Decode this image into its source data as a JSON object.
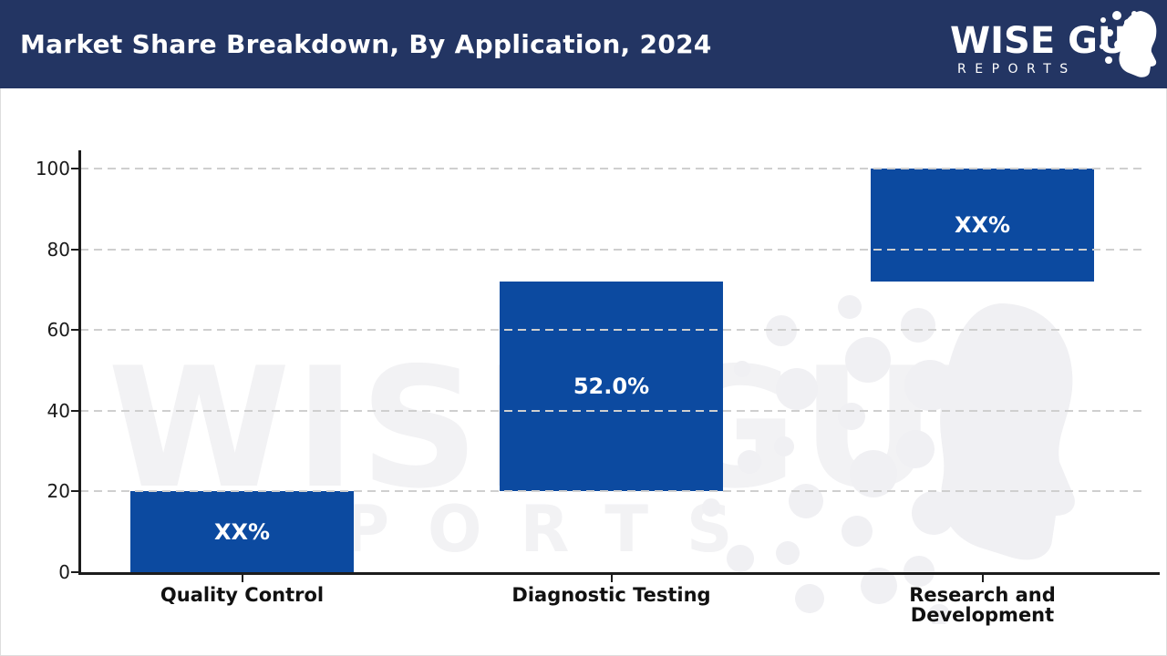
{
  "header": {
    "title": "Market Share Breakdown, By Application, 2024"
  },
  "logo": {
    "line1": "WISE GUY",
    "line2": "REPORTS"
  },
  "watermark": {
    "line1": "WISE GUY",
    "line2": "REPORTS"
  },
  "colors": {
    "header_background": "#233563",
    "bar_fill": "#0c4aa0",
    "bar_label_text": "#ffffff",
    "gridline": "#cfcfcf",
    "axis": "#1c1c1c",
    "watermark_gray": "#f2f2f4"
  },
  "chart_data": {
    "type": "bar",
    "subtype": "floating-segment-waterfall",
    "title": "Market Share Breakdown, By Application, 2024",
    "xlabel": "",
    "ylabel": "",
    "categories": [
      "Quality Control",
      "Diagnostic Testing",
      "Research and\nDevelopment"
    ],
    "values": [
      20,
      52,
      28
    ],
    "segments": [
      {
        "category": "Quality Control",
        "start": 0,
        "end": 20,
        "label": "XX%"
      },
      {
        "category": "Diagnostic Testing",
        "start": 20,
        "end": 72,
        "label": "52.0%"
      },
      {
        "category": "Research and Development",
        "start": 72,
        "end": 100,
        "label": "XX%"
      }
    ],
    "yticks": [
      0,
      20,
      40,
      60,
      80,
      100
    ],
    "ylim": [
      0,
      104
    ],
    "grid": "horizontal-dashed",
    "legend": "none"
  }
}
